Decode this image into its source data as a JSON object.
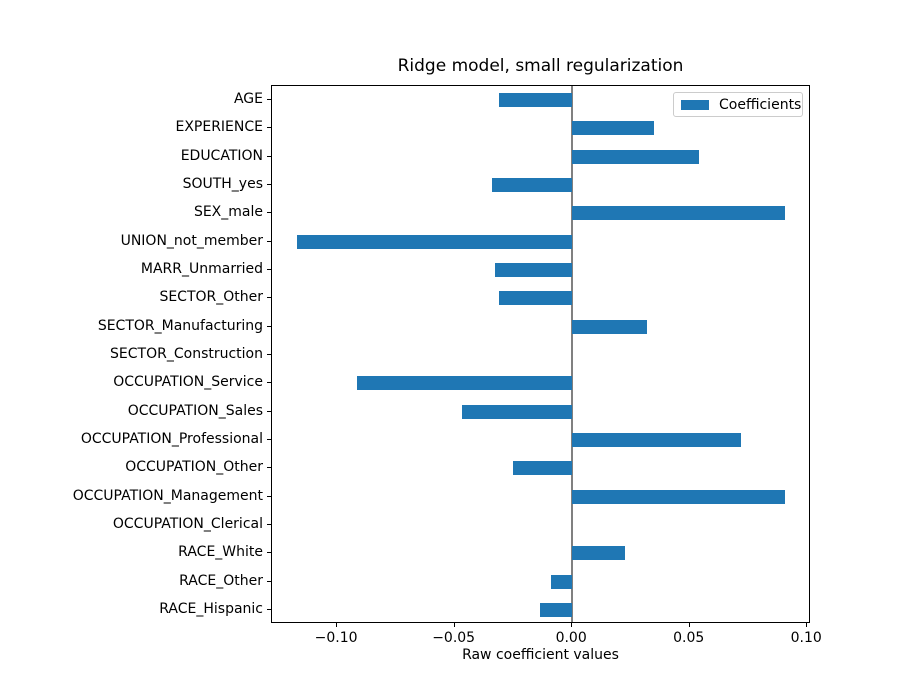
{
  "chart_data": {
    "type": "bar",
    "orientation": "horizontal",
    "title": "Ridge model, small regularization",
    "xlabel": "Raw coefficient values",
    "ylabel": "",
    "legend": {
      "label": "Coefficients",
      "position": "upper right"
    },
    "grid": false,
    "bar_color": "#1f77b4",
    "zero_line_color": "#808080",
    "categories": [
      "AGE",
      "EXPERIENCE",
      "EDUCATION",
      "SOUTH_yes",
      "SEX_male",
      "UNION_not_member",
      "MARR_Unmarried",
      "SECTOR_Other",
      "SECTOR_Manufacturing",
      "SECTOR_Construction",
      "OCCUPATION_Service",
      "OCCUPATION_Sales",
      "OCCUPATION_Professional",
      "OCCUPATION_Other",
      "OCCUPATION_Management",
      "OCCUPATION_Clerical",
      "RACE_White",
      "RACE_Other",
      "RACE_Hispanic"
    ],
    "values": [
      -0.031,
      0.035,
      0.054,
      -0.034,
      0.0905,
      -0.117,
      -0.033,
      -0.031,
      0.0317,
      0.0,
      -0.0915,
      -0.047,
      0.072,
      -0.025,
      0.0904,
      0.0,
      0.0224,
      -0.009,
      -0.0135
    ],
    "xlim": [
      -0.1277,
      0.1016
    ],
    "xticks": [
      -0.1,
      -0.05,
      0.0,
      0.05,
      0.1
    ],
    "xtick_labels": [
      "−0.10",
      "−0.05",
      "0.00",
      "0.05",
      "0.10"
    ]
  }
}
